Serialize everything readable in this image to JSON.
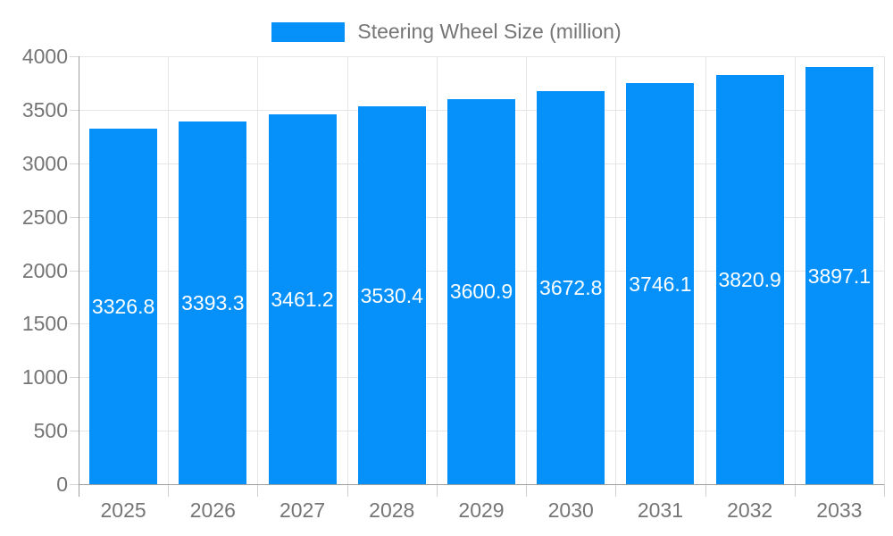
{
  "legend": {
    "label": "Steering Wheel Size (million)",
    "swatch_color": "#0691fa"
  },
  "chart_data": {
    "type": "bar",
    "title": "Steering Wheel Size (million)",
    "categories": [
      "2025",
      "2026",
      "2027",
      "2028",
      "2029",
      "2030",
      "2031",
      "2032",
      "2033"
    ],
    "values": [
      3326.8,
      3393.3,
      3461.2,
      3530.4,
      3600.9,
      3672.8,
      3746.1,
      3820.9,
      3897.1
    ],
    "value_labels": [
      "3326.8",
      "3393.3",
      "3461.2",
      "3530.4",
      "3600.9",
      "3672.8",
      "3746.1",
      "3820.9",
      "3897.1"
    ],
    "xlabel": "",
    "ylabel": "",
    "ylim": [
      0,
      4000
    ],
    "ytick_step": 500,
    "ytick_labels": [
      "0",
      "500",
      "1000",
      "1500",
      "2000",
      "2500",
      "3000",
      "3500",
      "4000"
    ],
    "grid": true,
    "legend_position": "top",
    "bar_color": "#0691fa",
    "value_label_color": "#ffffff",
    "axis_text_color": "#757575"
  }
}
